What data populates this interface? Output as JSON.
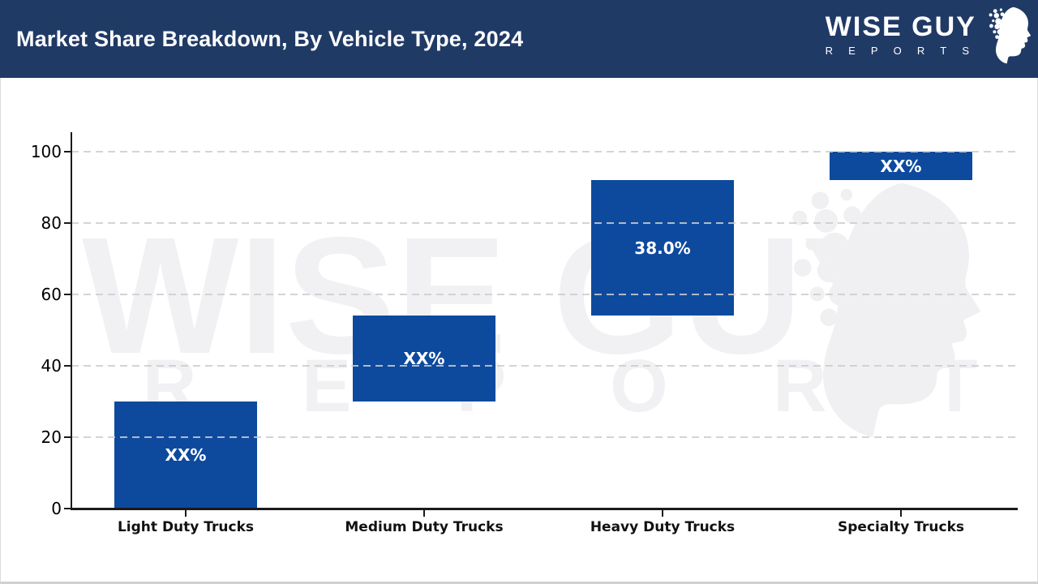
{
  "header": {
    "title": "Market Share Breakdown, By Vehicle Type, 2024",
    "logo": {
      "line1": "WISE GUY",
      "line2": "REPORTS"
    }
  },
  "watermark": {
    "line1": "WISE GUY",
    "line2": "REPORTS"
  },
  "colors": {
    "header_bg": "#203a66",
    "bar_fill": "#0d4a9e",
    "bar_label_text": "#ffffff",
    "grid_line": "#cdcdcd",
    "axis_line": "#1a1a1a",
    "watermark": "#f1f1f4"
  },
  "chart_data": {
    "type": "bar",
    "subtype": "stacked-waterfall",
    "title": "Market Share Breakdown, By Vehicle Type, 2024",
    "xlabel": "",
    "ylabel": "",
    "categories": [
      "Light Duty Trucks",
      "Medium Duty Trucks",
      "Heavy Duty Trucks",
      "Specialty Trucks"
    ],
    "segments": [
      {
        "category": "Light Duty Trucks",
        "start": 0,
        "end": 30,
        "value": 30,
        "label": "XX%"
      },
      {
        "category": "Medium Duty Trucks",
        "start": 30,
        "end": 54,
        "value": 24,
        "label": "XX%"
      },
      {
        "category": "Heavy Duty Trucks",
        "start": 54,
        "end": 92,
        "value": 38,
        "label": "38.0%"
      },
      {
        "category": "Specialty Trucks",
        "start": 92,
        "end": 100,
        "value": 8,
        "label": "XX%"
      }
    ],
    "yticks": [
      0,
      20,
      40,
      60,
      80,
      100
    ],
    "ylim": [
      0,
      105
    ],
    "grid": "horizontal-dashed",
    "legend": "none",
    "bar_color": "#0d4a9e"
  }
}
